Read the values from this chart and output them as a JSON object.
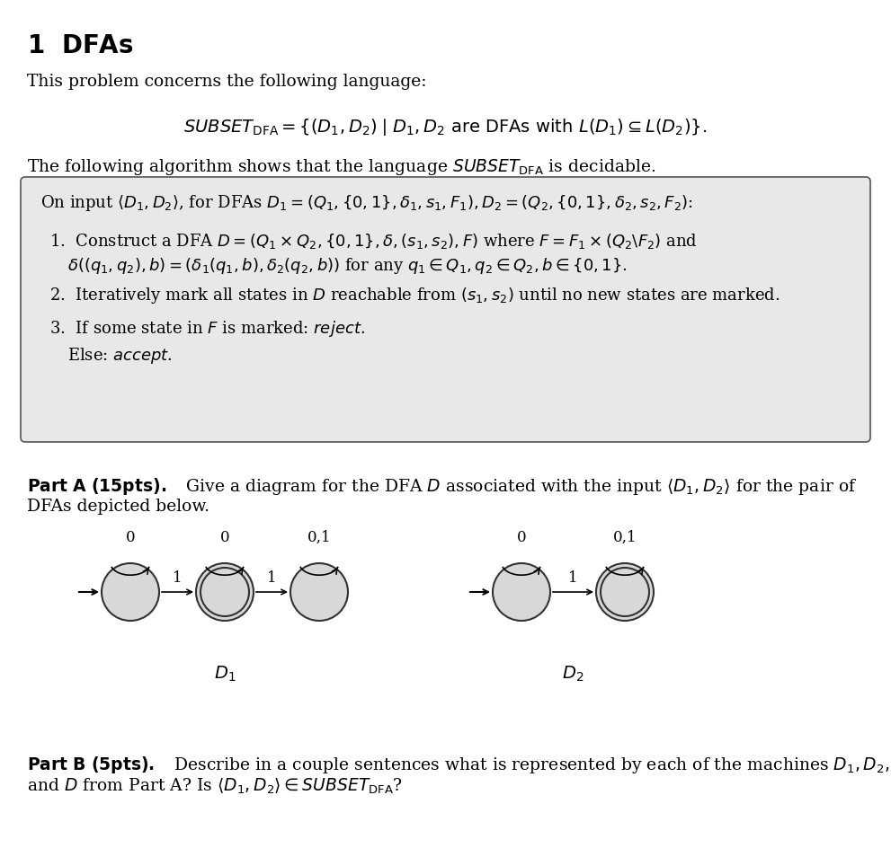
{
  "title": "1   DFAs",
  "bg_color": "#ffffff",
  "text_color": "#000000",
  "fig_width": 9.91,
  "fig_height": 9.45,
  "dpi": 100
}
